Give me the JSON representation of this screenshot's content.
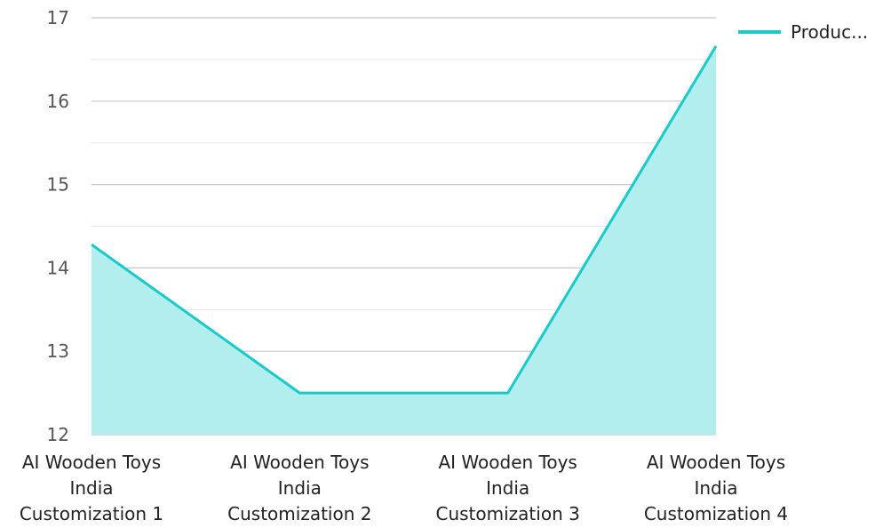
{
  "chart_data": {
    "type": "area",
    "categories": [
      [
        "AI Wooden Toys",
        "India",
        "Customization 1"
      ],
      [
        "AI Wooden Toys",
        "India",
        "Customization 2"
      ],
      [
        "AI Wooden Toys",
        "India",
        "Customization 3"
      ],
      [
        "AI Wooden Toys",
        "India",
        "Customization 4"
      ]
    ],
    "series": [
      {
        "name": "Produc...",
        "values": [
          14.28,
          12.5,
          12.5,
          16.66
        ]
      }
    ],
    "yticks": [
      "12",
      "13",
      "14",
      "15",
      "16",
      "17"
    ],
    "ylim": [
      12,
      17
    ],
    "minor_gridlines": true,
    "legend_position": "top-right",
    "colors": {
      "line": "#1cc9c9",
      "fill": "#b2eeee",
      "grid_major": "#c8c8c8",
      "grid_minor": "#e4e4e4"
    }
  }
}
